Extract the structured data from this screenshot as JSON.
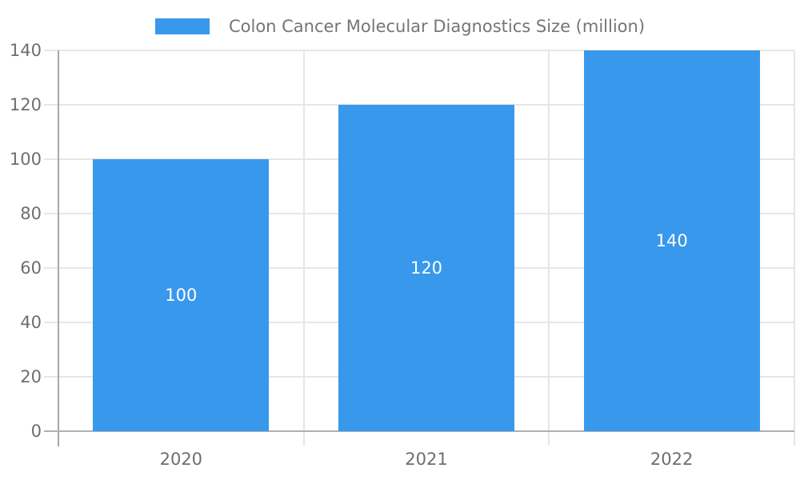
{
  "chart_data": {
    "type": "bar",
    "title": "Colon Cancer Molecular Diagnostics Size (million)",
    "categories": [
      "2020",
      "2021",
      "2022"
    ],
    "values": [
      100,
      120,
      140
    ],
    "bar_labels": [
      "100",
      "120",
      "140"
    ],
    "xlabel": "",
    "ylabel": "",
    "ylim": [
      0,
      140
    ],
    "ytick_step": 20,
    "yticks": [
      0,
      20,
      40,
      60,
      80,
      100,
      120,
      140
    ],
    "grid": true,
    "legend_position": "top",
    "colors": {
      "bar": "#3898ec",
      "bar_label_text": "#ffffff",
      "gridline": "#e6e6e6",
      "axis_line": "#a6a6a6",
      "baseline": "#b0b0b0",
      "axis_text": "#6e6e6e",
      "legend_text": "#757575",
      "background": "#ffffff"
    }
  }
}
